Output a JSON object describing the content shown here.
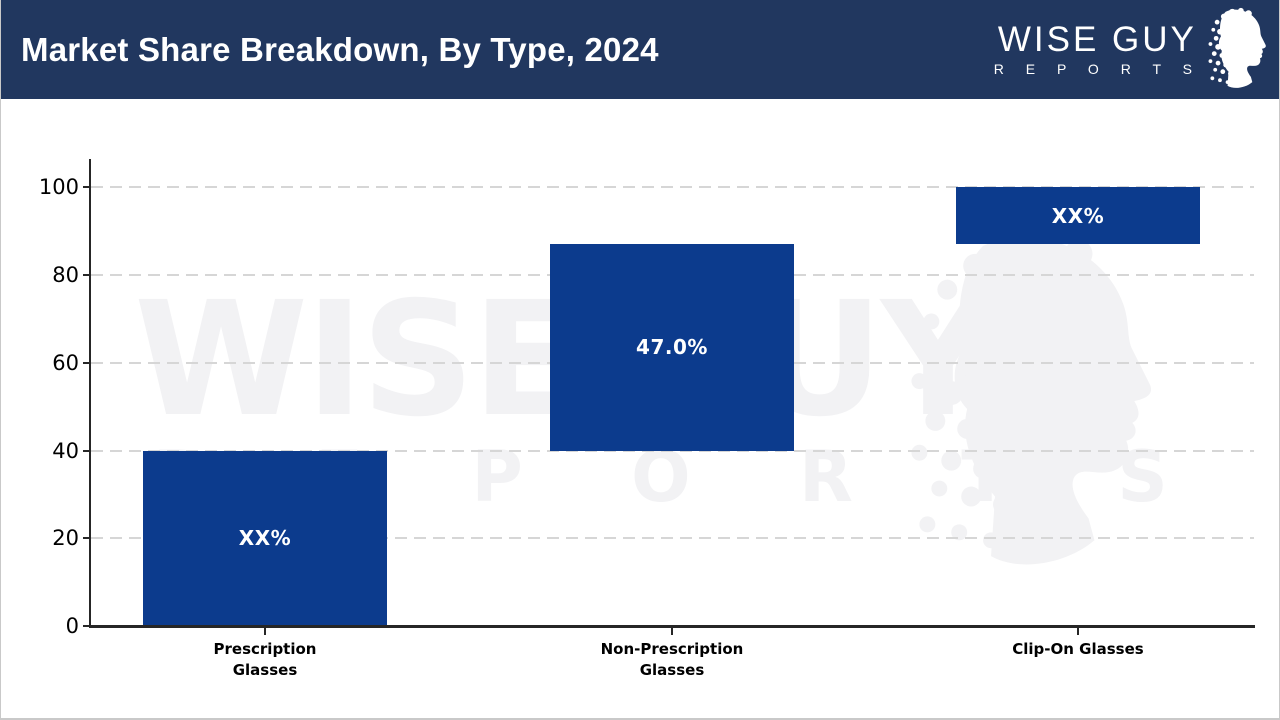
{
  "header": {
    "title": "Market Share Breakdown, By Type, 2024",
    "logo": {
      "name": "WISE GUY",
      "sub": "R E P O R T S"
    }
  },
  "watermark": {
    "name": "WISE GUY",
    "sub": "R E P O R T S"
  },
  "colors": {
    "header_bg": "#21375f",
    "bar_blue": "#0c3b8d",
    "grid_gray": "#d6d6d6",
    "axis_black": "#262626",
    "watermark_gray": "#f2f2f4",
    "bar_label_white": "#ffffff"
  },
  "chart_data": {
    "type": "bar",
    "subtype": "waterfall",
    "title": "Market Share Breakdown, By Type, 2024",
    "categories": [
      "Prescription Glasses",
      "Non-Prescription Glasses",
      "Clip-On Glasses"
    ],
    "category_lines": [
      [
        "Prescription",
        "Glasses"
      ],
      [
        "Non-Prescription",
        "Glasses"
      ],
      [
        "Clip-On Glasses"
      ]
    ],
    "bars": [
      {
        "category": "Prescription Glasses",
        "start": 0,
        "value": 40,
        "label": "XX%"
      },
      {
        "category": "Non-Prescription Glasses",
        "start": 40,
        "value": 47,
        "label": "47.0%"
      },
      {
        "category": "Clip-On Glasses",
        "start": 87,
        "value": 13,
        "label": "XX%"
      }
    ],
    "xlabel": "",
    "ylabel": "",
    "yticks": [
      0,
      20,
      40,
      60,
      80,
      100
    ],
    "ylim": [
      0,
      106.5
    ],
    "grid": "dashed-horizontal",
    "legend": "none"
  }
}
